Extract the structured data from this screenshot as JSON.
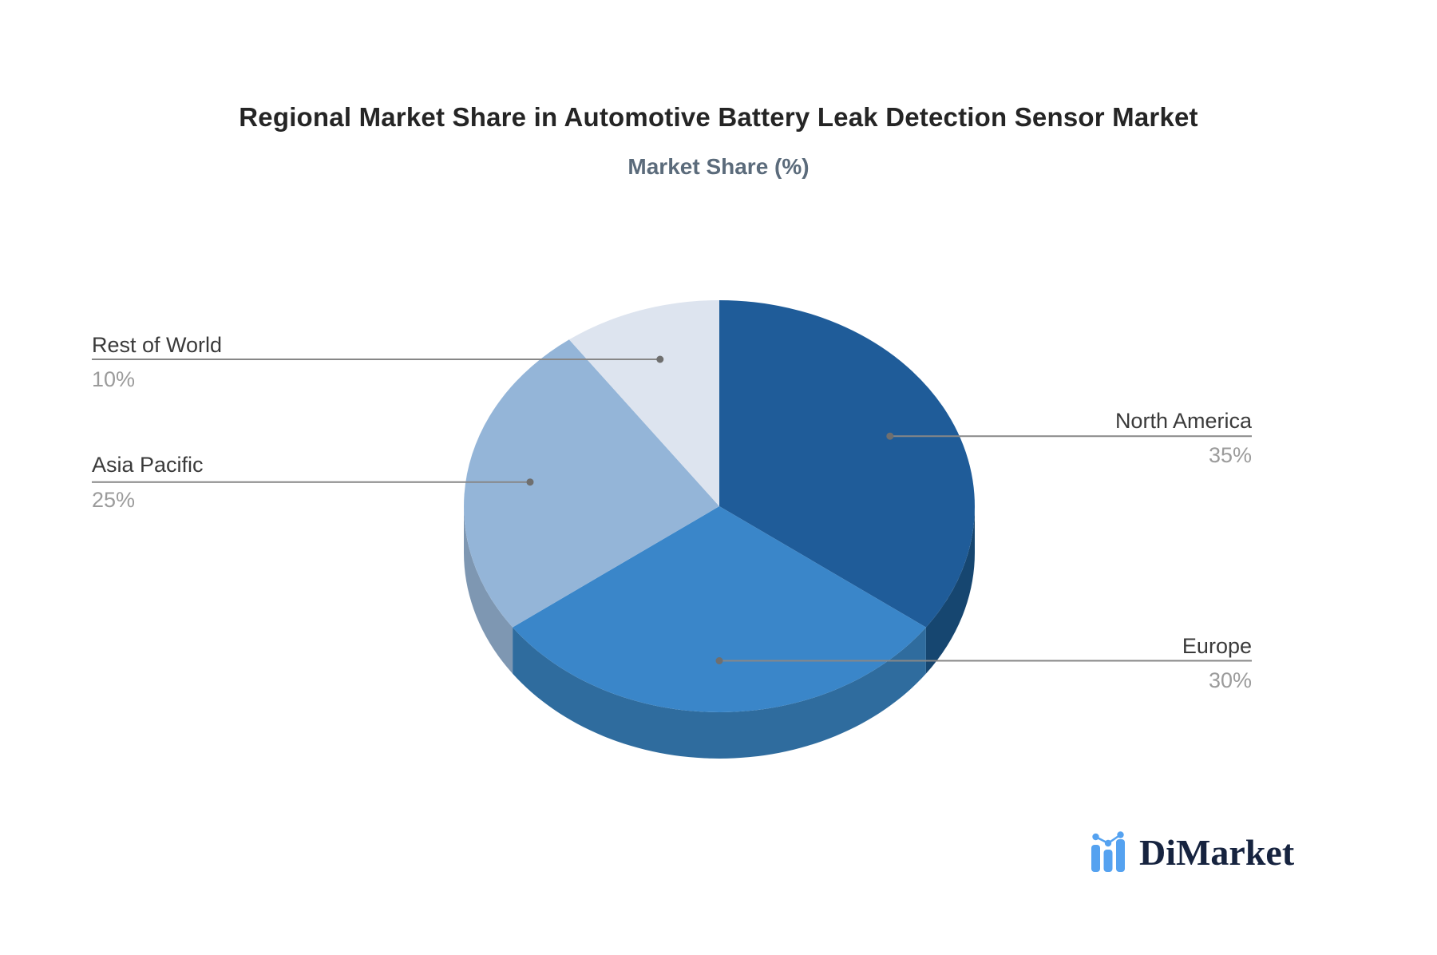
{
  "chart_data": {
    "type": "pie",
    "title": "Regional Market Share in Automotive Battery Leak Detection Sensor Market",
    "subtitle": "Market Share (%)",
    "unit": "%",
    "effect_3d": true,
    "start_angle_deg": 0,
    "direction": "clockwise",
    "legend_position": "callout-labels",
    "slices": [
      {
        "label": "North America",
        "value": 35,
        "display": "35%",
        "color": "#1f5c99",
        "side_color": "#164670",
        "label_side": "right"
      },
      {
        "label": "Europe",
        "value": 30,
        "display": "30%",
        "color": "#3a86c9",
        "side_color": "#2f6c9e",
        "label_side": "right"
      },
      {
        "label": "Asia Pacific",
        "value": 25,
        "display": "25%",
        "color": "#94b5d8",
        "side_color": "#7e97b2",
        "label_side": "left"
      },
      {
        "label": "Rest of World",
        "value": 10,
        "display": "10%",
        "color": "#dde4ef",
        "side_color": "#c6d2e2",
        "label_side": "left"
      }
    ],
    "callout": {
      "line_color": "#878787",
      "dot_color": "#6f6f6f"
    }
  },
  "brand": {
    "name": "DiMarket"
  }
}
